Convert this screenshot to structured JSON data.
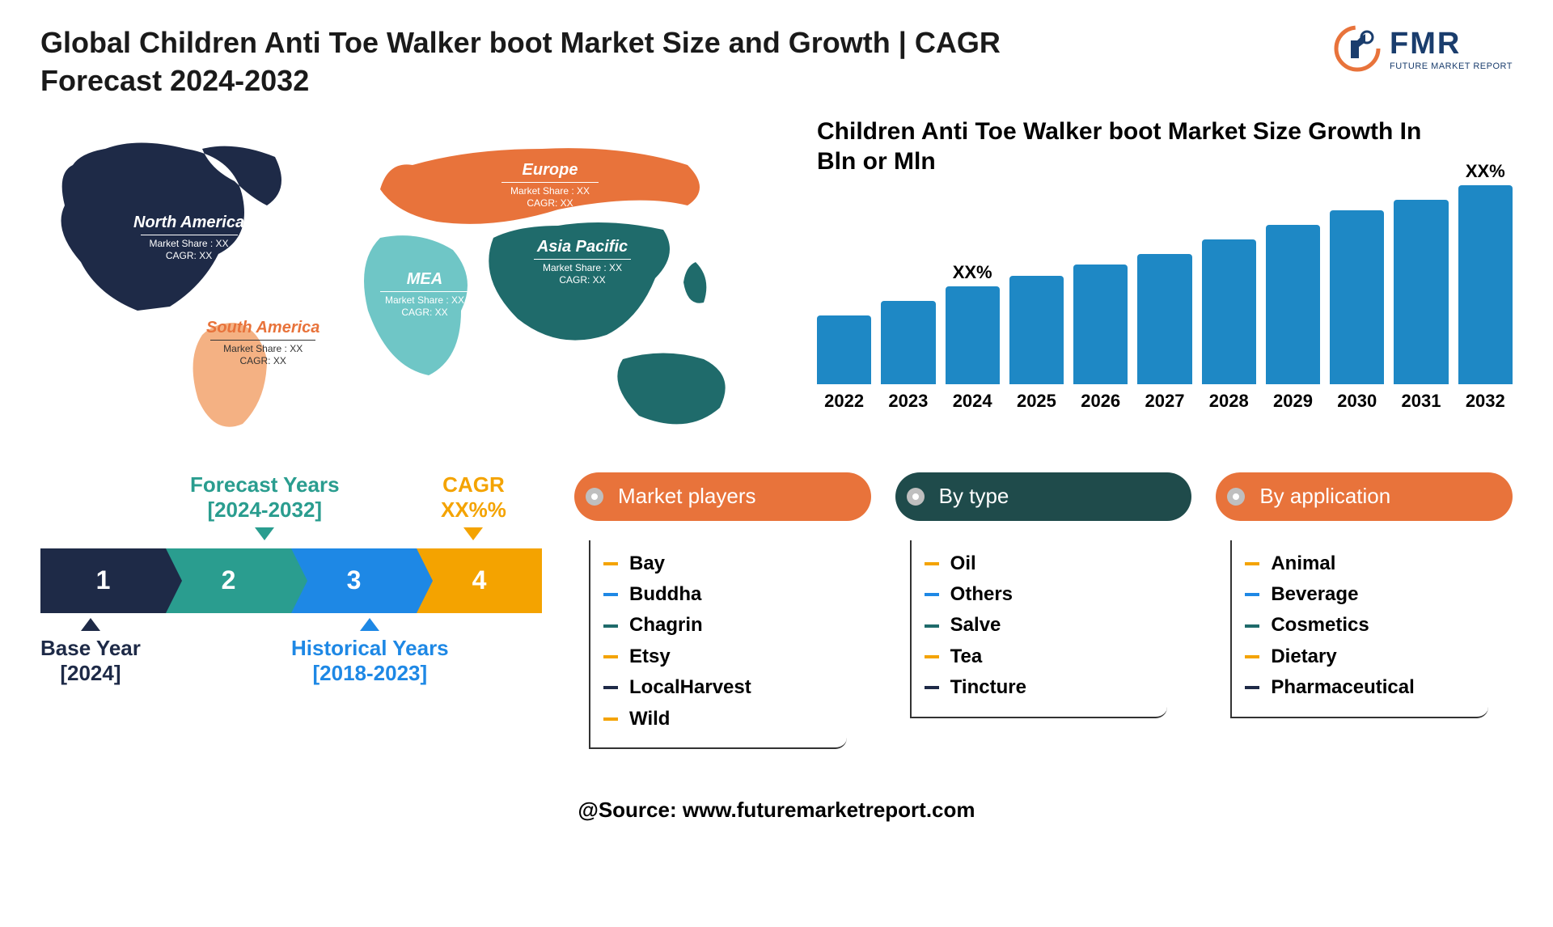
{
  "title": "Global Children Anti Toe Walker boot Market Size and Growth | CAGR Forecast 2024-2032",
  "logo": {
    "fmr": "FMR",
    "sub": "FUTURE MARKET REPORT"
  },
  "map": {
    "regions": [
      {
        "name": "North America",
        "share": "Market Share : XX",
        "cagr": "CAGR: XX",
        "color": "#1e2a47"
      },
      {
        "name": "South America",
        "share": "Market Share : XX",
        "cagr": "CAGR: XX",
        "color": "#f4b183"
      },
      {
        "name": "Europe",
        "share": "Market Share : XX",
        "cagr": "CAGR: XX",
        "color": "#e8733b"
      },
      {
        "name": "MEA",
        "share": "Market Share : XX",
        "cagr": "CAGR: XX",
        "color": "#6fc6c6"
      },
      {
        "name": "Asia Pacific",
        "share": "Market Share : XX",
        "cagr": "CAGR: XX",
        "color": "#1f6b6b"
      }
    ]
  },
  "chart": {
    "title": "Children Anti Toe Walker boot Market Size Growth In\nBln or Mln",
    "bar_color": "#1e88c5",
    "years": [
      "2022",
      "2023",
      "2024",
      "2025",
      "2026",
      "2027",
      "2028",
      "2029",
      "2030",
      "2031",
      "2032"
    ],
    "values": [
      95,
      115,
      135,
      150,
      165,
      180,
      200,
      220,
      240,
      255,
      275
    ],
    "max": 280,
    "annotations": [
      {
        "index": 2,
        "text": "XX%"
      },
      {
        "index": 10,
        "text": "XX%"
      }
    ]
  },
  "timeline": {
    "segments": [
      {
        "num": "1",
        "bg": "#1e2a47"
      },
      {
        "num": "2",
        "bg": "#2a9d8f"
      },
      {
        "num": "3",
        "bg": "#1e88e5"
      },
      {
        "num": "4",
        "bg": "#f4a300"
      }
    ],
    "top_labels": [
      {
        "title": "Forecast Years",
        "sub": "[2024-2032]",
        "color": "#2a9d8f",
        "seg": 1
      },
      {
        "title": "CAGR",
        "sub": "XX%%",
        "color": "#f4a300",
        "seg": 3
      }
    ],
    "bot_labels": [
      {
        "title": "Base Year",
        "sub": "[2024]",
        "color": "#1e2a47",
        "seg": 0
      },
      {
        "title": "Historical Years",
        "sub": "[2018-2023]",
        "color": "#1e88e5",
        "seg": 2
      }
    ]
  },
  "categories": [
    {
      "header": "Market players",
      "header_bg": "#e8733b",
      "items": [
        {
          "label": "Bay",
          "tick": "#f4a300"
        },
        {
          "label": "Buddha",
          "tick": "#1e88e5"
        },
        {
          "label": "Chagrin",
          "tick": "#1f6b6b"
        },
        {
          "label": "Etsy",
          "tick": "#f4a300"
        },
        {
          "label": "LocalHarvest",
          "tick": "#1e2a47"
        },
        {
          "label": "Wild",
          "tick": "#f4a300"
        }
      ]
    },
    {
      "header": "By type",
      "header_bg": "#1f4b4b",
      "items": [
        {
          "label": "Oil",
          "tick": "#f4a300"
        },
        {
          "label": "Others",
          "tick": "#1e88e5"
        },
        {
          "label": "Salve",
          "tick": "#1f6b6b"
        },
        {
          "label": "Tea",
          "tick": "#f4a300"
        },
        {
          "label": "Tincture",
          "tick": "#1e2a47"
        }
      ]
    },
    {
      "header": "By application",
      "header_bg": "#e8733b",
      "items": [
        {
          "label": "Animal",
          "tick": "#f4a300"
        },
        {
          "label": "Beverage",
          "tick": "#1e88e5"
        },
        {
          "label": "Cosmetics",
          "tick": "#1f6b6b"
        },
        {
          "label": "Dietary",
          "tick": "#f4a300"
        },
        {
          "label": "Pharmaceutical",
          "tick": "#1e2a47"
        }
      ]
    }
  ],
  "source": "@Source: www.futuremarketreport.com"
}
